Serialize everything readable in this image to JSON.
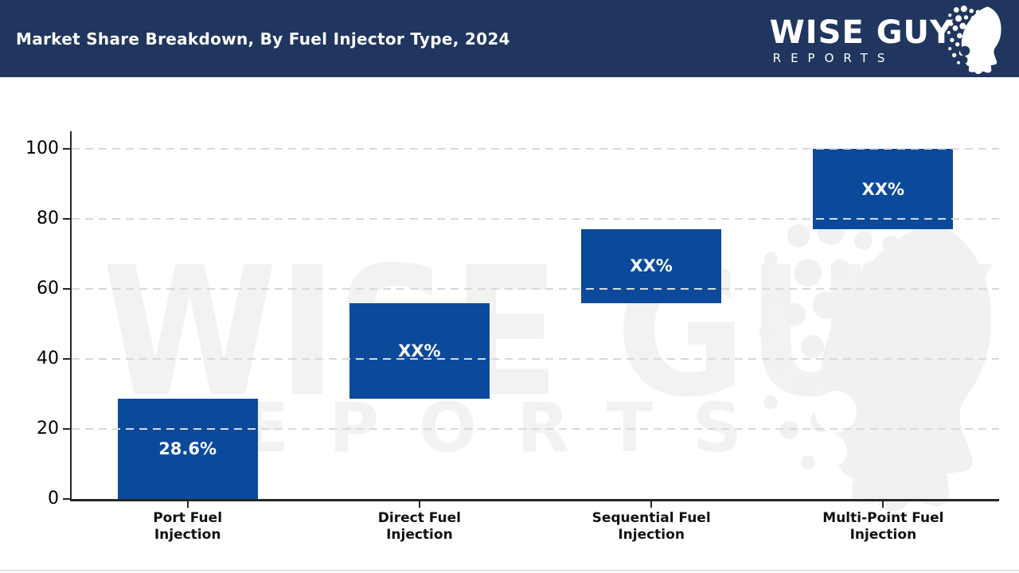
{
  "header": {
    "title": "Market Share Breakdown, By Fuel Injector Type, 2024",
    "logo": {
      "line1": "WISE GUY",
      "line2": "REPORTS"
    }
  },
  "watermark": {
    "line1": "WISE GUY",
    "line2": "REPORTS"
  },
  "colors": {
    "header_bg": "#21365E",
    "bar_fill": "#0B4A9B",
    "gridline": "#D9D9D9",
    "axis": "#262626",
    "watermark": "#F2F2F2",
    "bar_label_text": "#FFFFFF"
  },
  "chart_data": {
    "type": "bar",
    "subtype": "waterfall",
    "title": "Market Share Breakdown, By Fuel Injector Type, 2024",
    "categories": [
      "Port Fuel Injection",
      "Direct Fuel Injection",
      "Sequential Fuel Injection",
      "Multi-Point Fuel Injection"
    ],
    "category_lines": [
      [
        "Port Fuel",
        "Injection"
      ],
      [
        "Direct Fuel",
        "Injection"
      ],
      [
        "Sequential Fuel",
        "Injection"
      ],
      [
        "Multi-Point Fuel",
        "Injection"
      ]
    ],
    "segments": [
      {
        "category": "Port Fuel Injection",
        "start": 0,
        "end": 28.6,
        "value": 28.6,
        "label": "28.6%"
      },
      {
        "category": "Direct Fuel Injection",
        "start": 28.6,
        "end": 56,
        "value": 27.4,
        "label": "XX%"
      },
      {
        "category": "Sequential Fuel Injection",
        "start": 56,
        "end": 77,
        "value": 21,
        "label": "XX%"
      },
      {
        "category": "Multi-Point Fuel Injection",
        "start": 77,
        "end": 100,
        "value": 23,
        "label": "XX%"
      }
    ],
    "xlabel": "",
    "ylabel": "",
    "ylim": [
      0,
      100
    ],
    "yticks": [
      0,
      20,
      40,
      60,
      80,
      100
    ],
    "grid": "horizontal-dashed",
    "legend": "none",
    "bar_color": "#0B4A9B",
    "label_color": "#FFFFFF"
  }
}
